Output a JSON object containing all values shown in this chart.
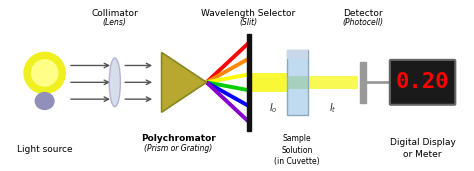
{
  "bg_color": "#ffffff",
  "arrow_color": "#555555",
  "prism_color_face": "#b8a830",
  "prism_color_edge": "#888820",
  "lens_color": "#d0d8e8",
  "lens_edge": "#aaaacc",
  "slit_color": "#111111",
  "cuvette_color_top": "#d8e8f0",
  "cuvette_color_body": "#c0daf0",
  "cuvette_stripe": "#90c890",
  "detector_color": "#999999",
  "display_bg": "#1a1a1a",
  "display_text": "0.20",
  "display_text_color": "#ff0000",
  "bulb_outer": "#f0f020",
  "bulb_inner": "#ffff88",
  "bulb_base": "#9090bb",
  "rainbow_colors": [
    "#ff0000",
    "#ff8800",
    "#ffff00",
    "#00cc00",
    "#0000ff",
    "#8800cc"
  ],
  "beam_color": "#f8f820",
  "beam_alpha": 0.9,
  "I0_label": "$I_o$",
  "It_label": "$I_t$",
  "labels": {
    "light_source": "Light source",
    "collimator_main": "Collimator",
    "collimator_sub": "(Lens)",
    "polychromator_main": "Polychromator",
    "polychromator_sub": "(Prism or Grating)",
    "wavelength_main": "Wavelength Selector",
    "wavelength_sub": "(Slit)",
    "sample_main": "Sample\nSolution\n(in Cuvette)",
    "detector_main": "Detector",
    "detector_sub": "(Photocell)",
    "display_main": "Digital Display\nor Meter"
  }
}
